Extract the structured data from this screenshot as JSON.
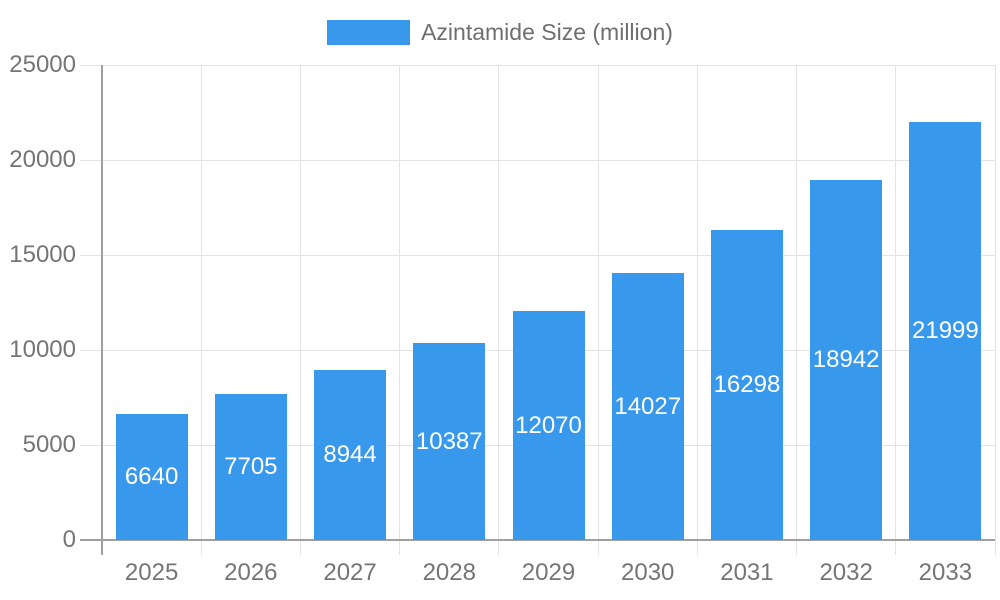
{
  "chart_data": {
    "type": "bar",
    "legend": {
      "label": "Azintamide Size (million)",
      "position": "top"
    },
    "categories": [
      "2025",
      "2026",
      "2027",
      "2028",
      "2029",
      "2030",
      "2031",
      "2032",
      "2033"
    ],
    "series": [
      {
        "name": "Azintamide Size (million)",
        "values": [
          6640,
          7705,
          8944,
          10387,
          12070,
          14027,
          16298,
          18942,
          21999
        ]
      }
    ],
    "xlabel": "",
    "ylabel": "",
    "ylim": [
      0,
      25000
    ],
    "yticks": [
      0,
      5000,
      10000,
      15000,
      20000,
      25000
    ],
    "ytick_labels": [
      "0",
      "5000",
      "10000",
      "15000",
      "20000",
      "25000"
    ],
    "grid": true,
    "legend_position": "top-center",
    "colors": {
      "bar": "#3899ec",
      "grid": "#e3e3e3",
      "axis": "#a0a0a0",
      "tick_label": "#757575",
      "legend_text": "#6e6e6e",
      "value_label": "#ffffff",
      "background": "#ffffff"
    }
  }
}
